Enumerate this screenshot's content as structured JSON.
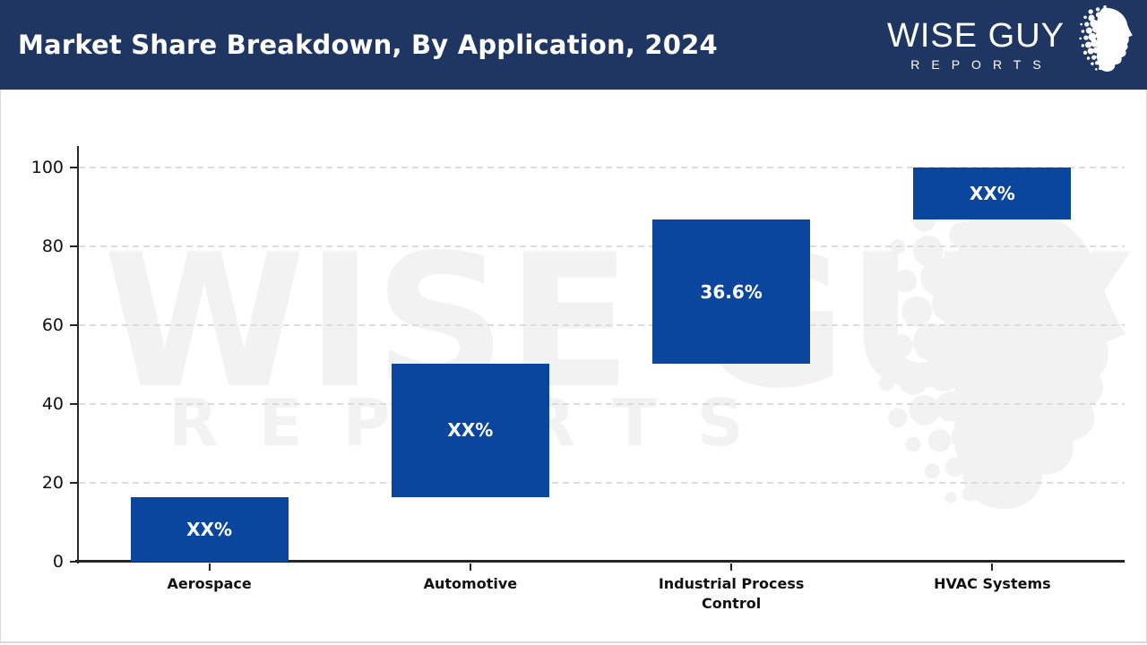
{
  "header": {
    "title": "Market Share Breakdown, By Application, 2024",
    "logo": {
      "line1": "WISE GUY",
      "line2": "REPORTS"
    }
  },
  "watermark": {
    "line1": "WISE GUY",
    "line2": "REPORTS"
  },
  "chart_data": {
    "type": "bar",
    "subtype": "floating-stacked-breakdown",
    "title": "Market Share Breakdown, By Application, 2024",
    "unit": "percent",
    "categories": [
      "Aerospace",
      "Automotive",
      "Industrial Process Control",
      "HVAC Systems"
    ],
    "segments": [
      {
        "category": "Aerospace",
        "start": 0,
        "end": 16.4,
        "value_label": "XX%"
      },
      {
        "category": "Automotive",
        "start": 16.4,
        "end": 50.2,
        "value_label": "XX%"
      },
      {
        "category": "Industrial Process Control",
        "start": 50.2,
        "end": 86.8,
        "value_label": "36.6%"
      },
      {
        "category": "HVAC Systems",
        "start": 86.8,
        "end": 100,
        "value_label": "XX%"
      }
    ],
    "y_ticks": [
      0,
      20,
      40,
      60,
      80,
      100
    ],
    "ylim": [
      0,
      105.5
    ],
    "xlabel": "",
    "ylabel": "",
    "grid": "horizontal-dashed",
    "legend": "none"
  },
  "colors": {
    "header_bg": "#203662",
    "bar": "#0a469d",
    "axis": "#262626",
    "gridline": "#dcdcdc",
    "tick_text": "#111111",
    "bar_label_text": "#ffffff",
    "watermark": "#f2f2f2",
    "frame_border": "#d9d9d9"
  }
}
